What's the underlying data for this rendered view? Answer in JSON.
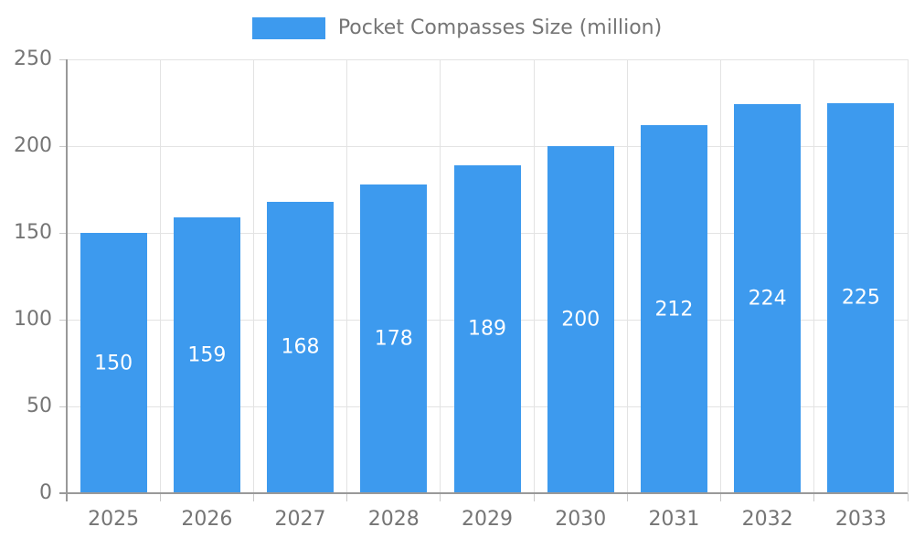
{
  "chart_data": {
    "type": "bar",
    "title": "",
    "xlabel": "",
    "ylabel": "",
    "categories": [
      "2025",
      "2026",
      "2027",
      "2028",
      "2029",
      "2030",
      "2031",
      "2032",
      "2033"
    ],
    "series": [
      {
        "name": "Pocket Compasses Size (million)",
        "values": [
          150,
          159,
          168,
          178,
          189,
          200,
          212,
          224,
          225
        ]
      }
    ],
    "legend": [
      "Pocket Compasses Size (million)"
    ],
    "legend_position": "top-center",
    "ylim": [
      0,
      250
    ],
    "yticks": [
      0,
      50,
      100,
      150,
      200,
      250
    ],
    "grid": true,
    "bar_value_labels_visible": true,
    "colors": {
      "bar": "#3D9AEE",
      "bar_value_text": "#FFFFFF",
      "axis_line": "#999999",
      "grid_line": "#E3E3E3",
      "tick_line": "#C9C9C9",
      "axis_text": "#757575",
      "legend_text": "#757575",
      "background": "#FFFFFF"
    }
  }
}
